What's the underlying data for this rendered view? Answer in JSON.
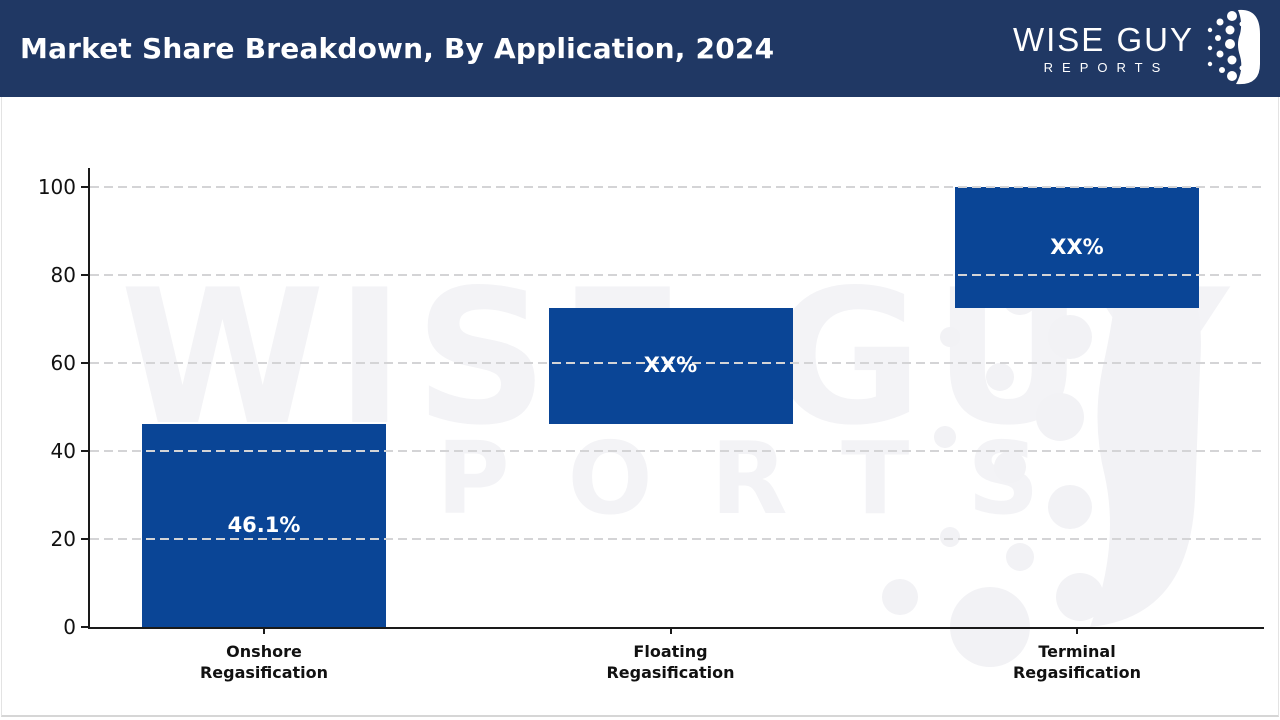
{
  "header": {
    "title": "Market Share Breakdown, By Application, 2024",
    "logo": {
      "line1": "WISE GUY",
      "line2": "REPORTS"
    }
  },
  "watermark": {
    "line1": "WISE GUY",
    "line2": "REPORTS"
  },
  "colors": {
    "header_bg": "#203864",
    "bar": "#0A4596",
    "grid_dash": "#d4d4d6",
    "axis": "#1a1a1a",
    "bar_value_text": "#ffffff",
    "watermark_text": "#f3f3f6"
  },
  "chart_data": {
    "type": "bar",
    "subtype": "stacked-waterfall",
    "title": "Market Share Breakdown, By Application, 2024",
    "xlabel": "",
    "ylabel": "",
    "ylim": [
      0,
      100
    ],
    "yticks": [
      0,
      20,
      40,
      60,
      80,
      100
    ],
    "grid": "horizontal dashed, drawn above bars",
    "legend": "none",
    "bar_color": "#0A4596",
    "categories": [
      {
        "line1": "Onshore",
        "line2": "Regasification"
      },
      {
        "line1": "Floating",
        "line2": "Regasification"
      },
      {
        "line1": "Terminal",
        "line2": "Regasification"
      }
    ],
    "segments": [
      {
        "category": "Onshore Regasification",
        "start": 0,
        "end": 46.1,
        "value_label": "46.1%"
      },
      {
        "category": "Floating Regasification",
        "start": 46.1,
        "end": 72.5,
        "value_label": "XX%"
      },
      {
        "category": "Terminal Regasification",
        "start": 72.5,
        "end": 100,
        "value_label": "XX%"
      }
    ]
  }
}
